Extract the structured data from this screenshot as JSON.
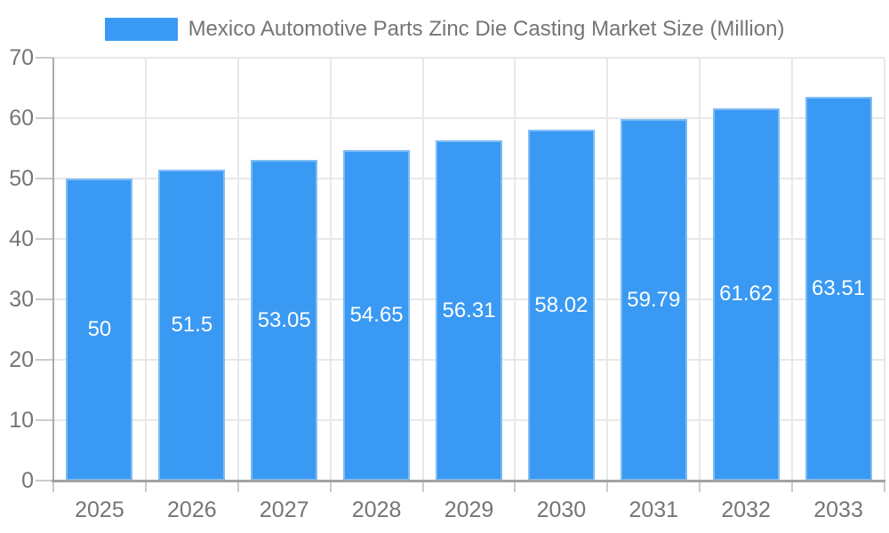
{
  "chart_data": {
    "type": "bar",
    "title": "Mexico Automotive Parts Zinc Die Casting Market Size (Million)",
    "categories": [
      "2025",
      "2026",
      "2027",
      "2028",
      "2029",
      "2030",
      "2031",
      "2032",
      "2033"
    ],
    "values": [
      50,
      51.5,
      53.05,
      54.65,
      56.31,
      58.02,
      59.79,
      61.62,
      63.51
    ],
    "value_labels": [
      "50",
      "51.5",
      "53.05",
      "54.65",
      "56.31",
      "58.02",
      "59.79",
      "61.62",
      "63.51"
    ],
    "xlabel": "",
    "ylabel": "",
    "ylim": [
      0,
      70
    ],
    "yticks": [
      0,
      10,
      20,
      30,
      40,
      50,
      60,
      70
    ],
    "grid": true,
    "legend_position": "top",
    "colors": {
      "bar": "#3A99F2",
      "axis_text": "#757575",
      "grid": "#E8E8E8",
      "tick": "#CBCBCB",
      "axis_line": "#ABABAB",
      "axis_line_bottom": "#A2A2A2",
      "value_label": "#FFFFFF"
    }
  }
}
